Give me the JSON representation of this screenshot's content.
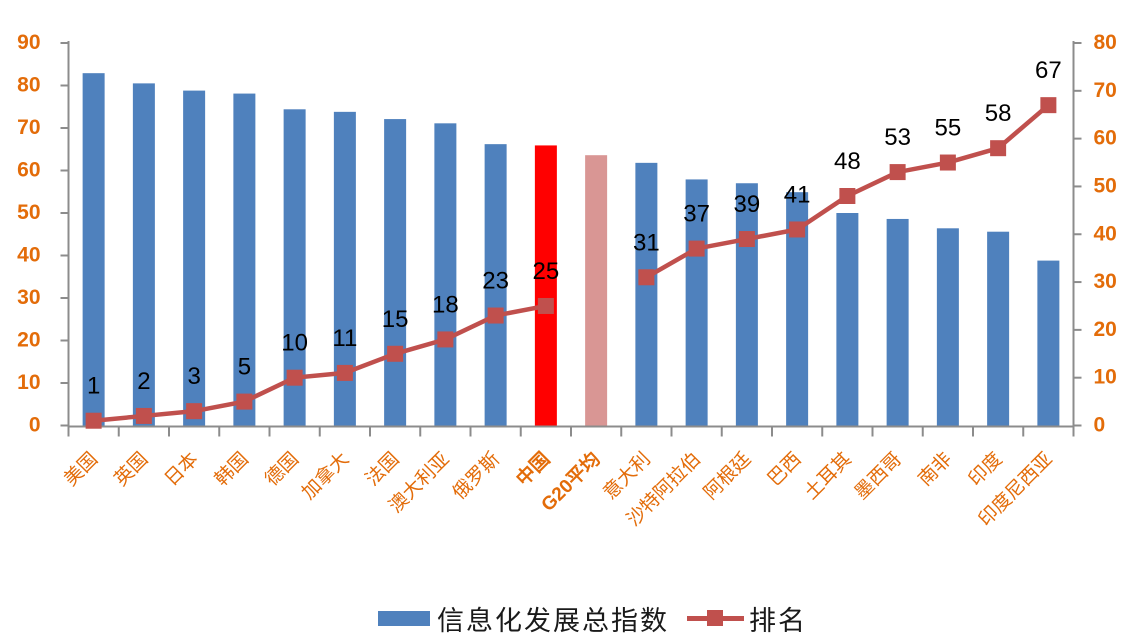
{
  "chart_data": {
    "type": "bar",
    "combo": "bar+line",
    "title": "",
    "categories": [
      "美国",
      "英国",
      "日本",
      "韩国",
      "德国",
      "加拿大",
      "法国",
      "澳大利亚",
      "俄罗斯",
      "中国",
      "G20平均",
      "意大利",
      "沙特阿拉伯",
      "阿根廷",
      "巴西",
      "土耳其",
      "墨西哥",
      "南非",
      "印度",
      "印度尼西亚"
    ],
    "series": [
      {
        "name": "信息化发展总指数",
        "chart_type": "bar",
        "axis": "left",
        "values": [
          82.9,
          80.5,
          78.8,
          78.1,
          74.4,
          73.8,
          72.1,
          71.1,
          66.2,
          65.9,
          63.6,
          61.8,
          57.9,
          57.0,
          54.9,
          50.0,
          48.6,
          46.4,
          45.6,
          38.8
        ]
      },
      {
        "name": "排名",
        "chart_type": "line",
        "axis": "right",
        "data_labels_shown": true,
        "values": [
          1,
          2,
          3,
          5,
          10,
          11,
          15,
          18,
          23,
          25,
          null,
          31,
          37,
          39,
          41,
          48,
          53,
          55,
          58,
          67
        ]
      }
    ],
    "left_axis": {
      "min": 0,
      "max": 90,
      "step": 10,
      "tick_labels": [
        "0",
        "10",
        "20",
        "30",
        "40",
        "50",
        "60",
        "70",
        "80",
        "90"
      ]
    },
    "right_axis": {
      "min": 0,
      "max": 80,
      "step": 10,
      "tick_labels": [
        "0",
        "10",
        "20",
        "30",
        "40",
        "50",
        "60",
        "70",
        "80"
      ]
    },
    "colors": {
      "bar": "#4F81BD",
      "line": "#C0504D",
      "china_bar": "#FF0000",
      "g20_bar": "#D99694",
      "axis_text": "#E36C09",
      "axis_line": "#8C8C8C",
      "data_label": "#000000",
      "legend_text": "#1A1A1A"
    },
    "highlight_colors": {
      "中国": "#FF0000",
      "G20平均": "#D99694"
    },
    "bold_categories": [
      "中国",
      "G20平均"
    ],
    "grid": "off",
    "legend_position": "bottom"
  },
  "legend": {
    "bar_label": "信息化发展总指数",
    "line_label": "排名"
  }
}
